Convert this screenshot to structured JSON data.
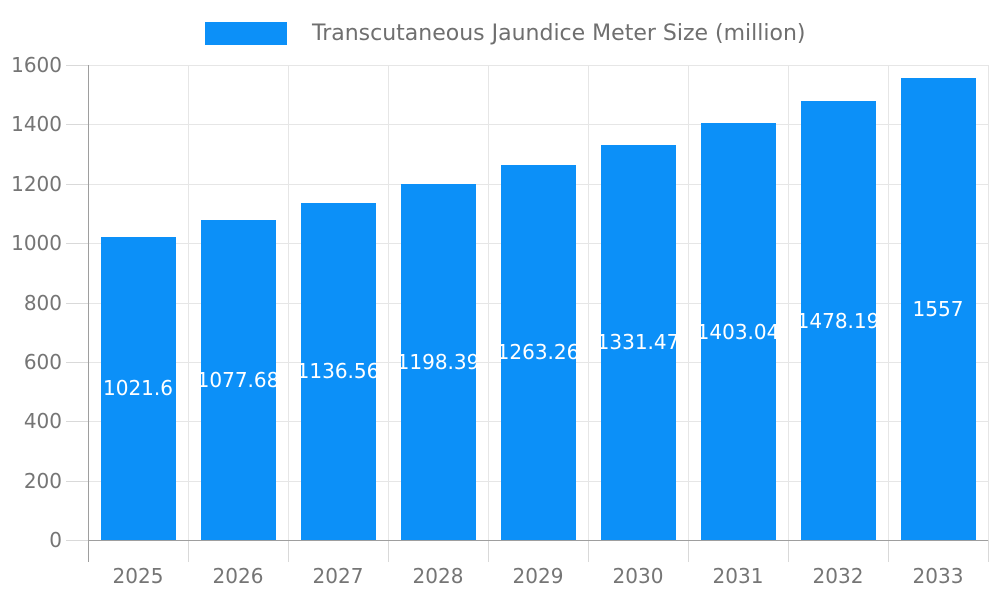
{
  "legend": {
    "label": "Transcutaneous Jaundice Meter Size (million)"
  },
  "chart_data": {
    "type": "bar",
    "title": "Transcutaneous Jaundice Meter Size (million)",
    "categories": [
      "2025",
      "2026",
      "2027",
      "2028",
      "2029",
      "2030",
      "2031",
      "2032",
      "2033"
    ],
    "values": [
      1021.6,
      1077.68,
      1136.56,
      1198.39,
      1263.26,
      1331.47,
      1403.04,
      1478.19,
      1557
    ],
    "bar_labels": [
      "1021.6",
      "1077.68",
      "1136.56",
      "1198.39",
      "1263.26",
      "1331.47",
      "1403.04",
      "1478.19",
      "1557"
    ],
    "xlabel": "",
    "ylabel": "",
    "ylim": [
      0,
      1600
    ],
    "y_ticks": [
      0,
      200,
      400,
      600,
      800,
      1000,
      1200,
      1400,
      1600
    ],
    "grid": true,
    "legend_position": "top",
    "colors": {
      "bar": "#0c90f8",
      "grid_line": "#e6e6e6",
      "tick_mark": "#d9d9d9",
      "axis_line": "#9e9e9e",
      "tick_label": "#757575",
      "title_text": "#6f6f6f",
      "value_label": "#ffffff",
      "background": "#ffffff"
    }
  }
}
